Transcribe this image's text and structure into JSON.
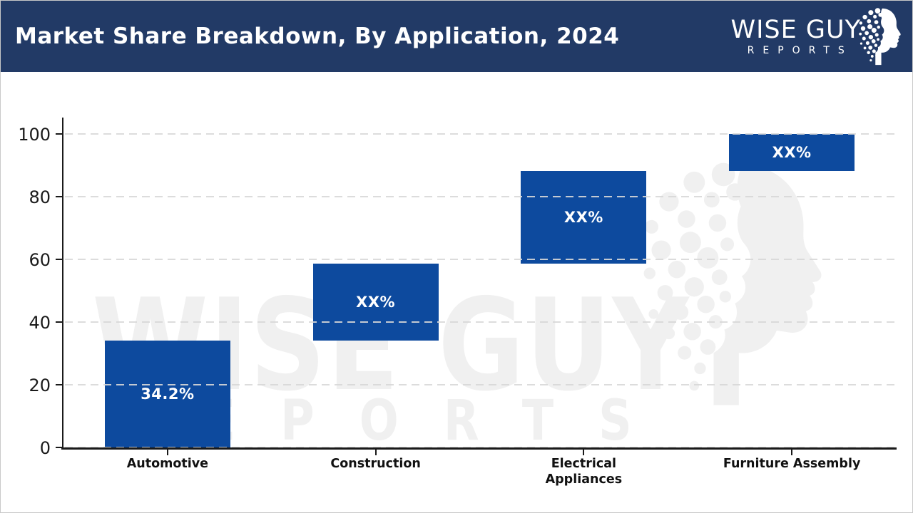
{
  "header": {
    "title": "Market Share Breakdown, By Application, 2024",
    "logo": {
      "wordmark": "WISE GUY",
      "subtext": "REPORTS"
    }
  },
  "watermark": {
    "line1": "WISE GUY",
    "line2": "REPORTS"
  },
  "chart_data": {
    "type": "bar",
    "subtype": "waterfall-breakdown",
    "title": "Market Share Breakdown, By Application, 2024",
    "categories": [
      "Automotive",
      "Construction",
      "Electrical\nAppliances",
      "Furniture Assembly"
    ],
    "segments": [
      {
        "category": "Automotive",
        "start": 0,
        "end": 34.2,
        "label": "34.2%"
      },
      {
        "category": "Construction",
        "start": 34.2,
        "end": 58.6,
        "label": "XX%"
      },
      {
        "category": "Electrical Appliances",
        "start": 58.6,
        "end": 88.2,
        "label": "XX%"
      },
      {
        "category": "Furniture Assembly",
        "start": 88.2,
        "end": 100,
        "label": "XX%"
      }
    ],
    "xlabel": "",
    "ylabel": "",
    "ylim": [
      0,
      100
    ],
    "yticks": [
      0,
      20,
      40,
      60,
      80,
      100
    ],
    "grid": "horizontal-dashed",
    "legend": "none",
    "colors": {
      "bar": "#0d4a9e",
      "grid": "#d9d9d9",
      "axis": "#1a1a1a",
      "header_bg": "#223a66",
      "bar_label_text": "#ffffff",
      "watermark": "#f0f0f0"
    }
  }
}
